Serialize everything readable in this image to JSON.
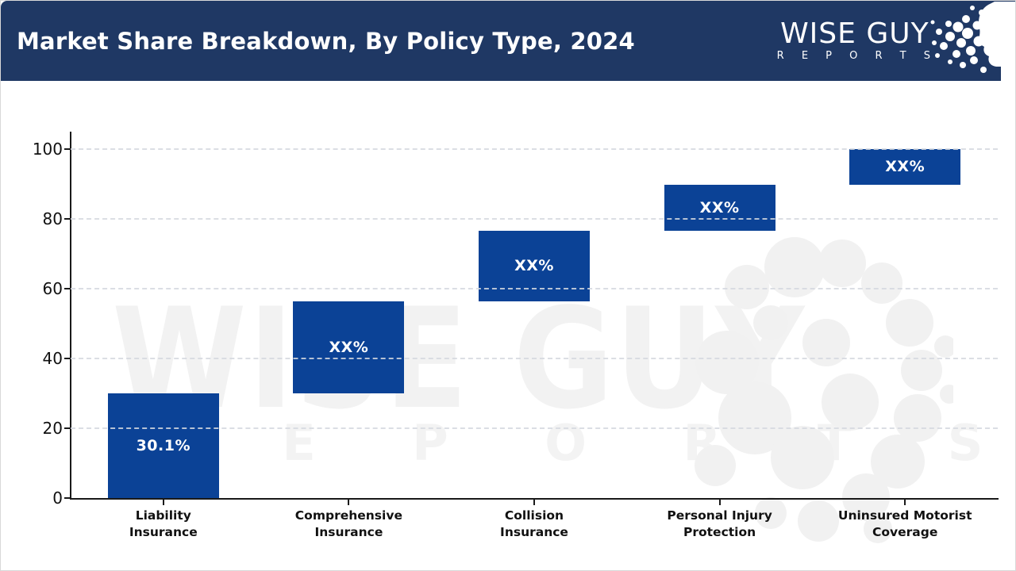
{
  "header": {
    "title": "Market Share Breakdown, By Policy Type, 2024",
    "bg_color": "#1f3864",
    "brand_name": "WISE GUY",
    "brand_sub": "R E P O R T S"
  },
  "watermark": {
    "line1": "WISE GUY",
    "line2": "R E P O R T S"
  },
  "chart_data": {
    "type": "bar",
    "subtype": "waterfall-floating-bars",
    "title": "Market Share Breakdown, By Policy Type, 2024",
    "xlabel": "",
    "ylabel": "",
    "ylim": [
      0,
      105
    ],
    "yticks": [
      0,
      20,
      40,
      60,
      80,
      100
    ],
    "grid": "horizontal-dashed",
    "legend": "none",
    "bar_color": "#0b4296",
    "categories": [
      "Liability Insurance",
      "Comprehensive Insurance",
      "Collision Insurance",
      "Personal Injury Protection",
      "Uninsured Motorist Coverage"
    ],
    "category_lines": [
      [
        "Liability",
        "Insurance"
      ],
      [
        "Comprehensive",
        "Insurance"
      ],
      [
        "Collision",
        "Insurance"
      ],
      [
        "Personal Injury",
        "Protection"
      ],
      [
        "Uninsured Motorist",
        "Coverage"
      ]
    ],
    "segments": [
      {
        "category": "Liability Insurance",
        "start": 0,
        "end": 30.1,
        "label": "30.1%"
      },
      {
        "category": "Comprehensive Insurance",
        "start": 30.1,
        "end": 56.4,
        "label": "XX%"
      },
      {
        "category": "Collision Insurance",
        "start": 56.4,
        "end": 76.6,
        "label": "XX%"
      },
      {
        "category": "Personal Injury Protection",
        "start": 76.6,
        "end": 89.8,
        "label": "XX%"
      },
      {
        "category": "Uninsured Motorist Coverage",
        "start": 89.8,
        "end": 100,
        "label": "XX%"
      }
    ]
  }
}
